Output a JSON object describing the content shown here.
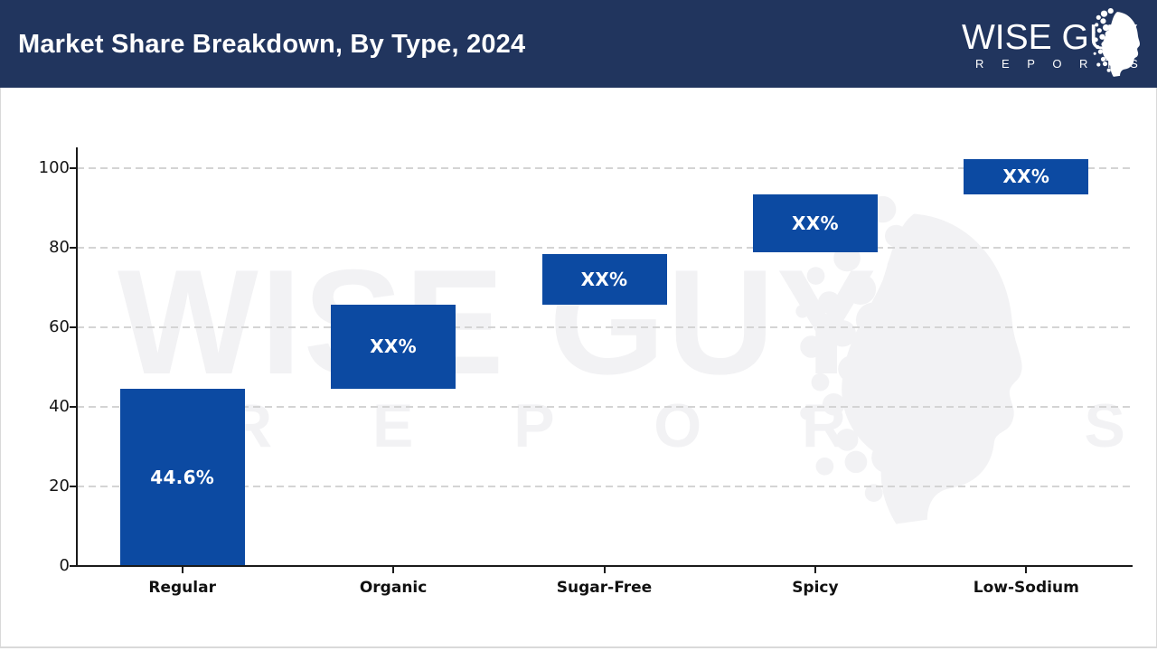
{
  "header": {
    "title": "Market Share Breakdown, By Type, 2024",
    "logo": {
      "line1": "WISE GUY",
      "line2": "R E P O R T S"
    }
  },
  "watermark": {
    "line1": "WISE GUY",
    "line2": "R E P O R T S"
  },
  "chart_data": {
    "type": "bar",
    "subtype": "floating-segment-waterfall",
    "title": "Market Share Breakdown, By Type, 2024",
    "categories": [
      "Regular",
      "Organic",
      "Sugar-Free",
      "Spicy",
      "Low-Sodium"
    ],
    "segments": [
      {
        "category": "Regular",
        "start": 0,
        "end": 44.6,
        "label": "44.6%"
      },
      {
        "category": "Organic",
        "start": 44.6,
        "end": 65.7,
        "label": "XX%"
      },
      {
        "category": "Sugar-Free",
        "start": 65.6,
        "end": 78.4,
        "label": "XX%"
      },
      {
        "category": "Spicy",
        "start": 78.7,
        "end": 93.3,
        "label": "XX%"
      },
      {
        "category": "Low-Sodium",
        "start": 93.3,
        "end": 102.2,
        "label": "XX%"
      }
    ],
    "yticks": [
      0,
      20,
      40,
      60,
      80,
      100
    ],
    "ylim": [
      0,
      105
    ],
    "xlabel": "",
    "ylabel": "",
    "grid": "horizontal-dashed",
    "legend": "none"
  },
  "colors": {
    "header_bg": "#21355e",
    "bar": "#0c4aa2",
    "bar_label": "#ffffff",
    "axis": "#1a1a1a",
    "grid": "#d4d4d4",
    "watermark": "#f2f2f4",
    "page_border": "#d9d9d9",
    "title": "#ffffff"
  }
}
